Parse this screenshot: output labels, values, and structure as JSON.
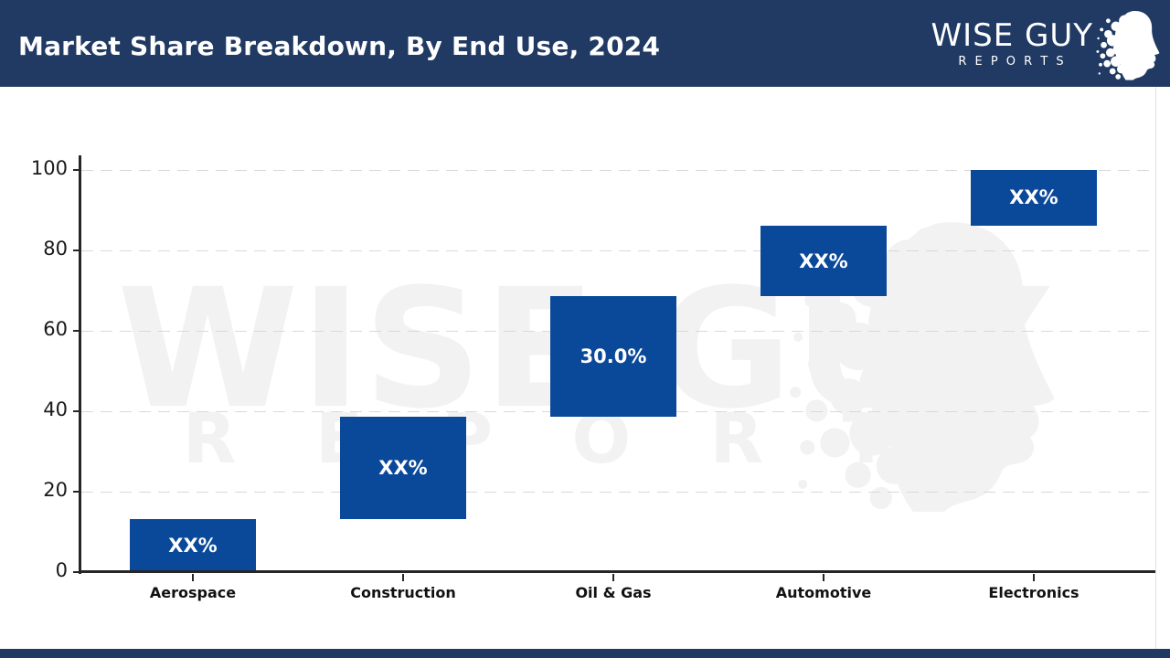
{
  "header": {
    "title": "Market Share Breakdown, By End Use, 2024",
    "logo": {
      "name": "WISE GUY",
      "tagline": "R E P O R T S"
    }
  },
  "watermark": {
    "line1": "WISE GUY",
    "line2": "R E P O R T S"
  },
  "colors": {
    "header_bg": "#213a63",
    "footer_bg": "#213a63",
    "title_text": "#ffffff",
    "bar": "#0a4899",
    "bar_label": "#ffffff",
    "grid_line": "#d9d9d9",
    "axis_line": "#262626",
    "tick_label": "#1a1a1a",
    "watermark": "#f2f2f2",
    "logo_text": "#ffffff"
  },
  "chart_data": {
    "type": "bar",
    "subtype": "waterfall",
    "title": "Market Share Breakdown, By End Use, 2024",
    "categories": [
      "Aerospace",
      "Construction",
      "Oil & Gas",
      "Automotive",
      "Electronics"
    ],
    "segments": [
      {
        "category": "Aerospace",
        "start": 0,
        "end": 13,
        "label": "XX%"
      },
      {
        "category": "Construction",
        "start": 13,
        "end": 38.5,
        "label": "XX%"
      },
      {
        "category": "Oil & Gas",
        "start": 38.5,
        "end": 68.5,
        "label": "30.0%"
      },
      {
        "category": "Automotive",
        "start": 68.5,
        "end": 86,
        "label": "XX%"
      },
      {
        "category": "Electronics",
        "start": 86,
        "end": 100,
        "label": "XX%"
      }
    ],
    "xlabel": "",
    "ylabel": "",
    "ylim": [
      0,
      103.5
    ],
    "yticks": [
      0,
      20,
      40,
      60,
      80,
      100
    ],
    "grid": "horizontal-dashed",
    "legend": "none",
    "value_labels_position": "inside-center"
  }
}
